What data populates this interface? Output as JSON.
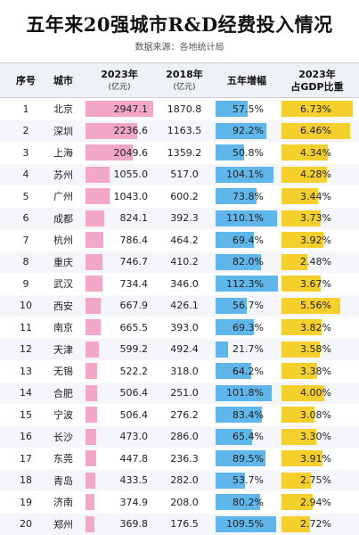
{
  "title": "五年来20强城市R&D经费投入情况",
  "subtitle": "数据来源：各地统计局",
  "headers": {
    "rank": "序号",
    "city": "城市",
    "y2023": "2023年",
    "y2023_unit": "(亿元)",
    "y2018": "2018年",
    "y2018_unit": "(亿元)",
    "growth": "五年增幅",
    "share_year": "2023年",
    "share": "占GDP比重"
  },
  "colors": {
    "pink": "#f2a7c6",
    "blue": "#5fb6ea",
    "gold": "#f5cf2c"
  },
  "chart_data": {
    "type": "table",
    "columns": [
      "序号",
      "城市",
      "2023年(亿元)",
      "2018年(亿元)",
      "五年增幅",
      "2023年占GDP比重"
    ],
    "rows": [
      {
        "rank": "1",
        "city": "北京",
        "rd2023": "2947.1",
        "rd2018": "1870.8",
        "growth": "57.5%",
        "share": "6.73%"
      },
      {
        "rank": "2",
        "city": "深圳",
        "rd2023": "2236.6",
        "rd2018": "1163.5",
        "growth": "92.2%",
        "share": "6.46%"
      },
      {
        "rank": "3",
        "city": "上海",
        "rd2023": "2049.6",
        "rd2018": "1359.2",
        "growth": "50.8%",
        "share": "4.34%"
      },
      {
        "rank": "4",
        "city": "苏州",
        "rd2023": "1055.0",
        "rd2018": "517.0",
        "growth": "104.1%",
        "share": "4.28%"
      },
      {
        "rank": "5",
        "city": "广州",
        "rd2023": "1043.0",
        "rd2018": "600.2",
        "growth": "73.8%",
        "share": "3.44%"
      },
      {
        "rank": "6",
        "city": "成都",
        "rd2023": "824.1",
        "rd2018": "392.3",
        "growth": "110.1%",
        "share": "3.73%"
      },
      {
        "rank": "7",
        "city": "杭州",
        "rd2023": "786.4",
        "rd2018": "464.2",
        "growth": "69.4%",
        "share": "3.92%"
      },
      {
        "rank": "8",
        "city": "重庆",
        "rd2023": "746.7",
        "rd2018": "410.2",
        "growth": "82.0%",
        "share": "2.48%"
      },
      {
        "rank": "9",
        "city": "武汉",
        "rd2023": "734.4",
        "rd2018": "346.0",
        "growth": "112.3%",
        "share": "3.67%"
      },
      {
        "rank": "10",
        "city": "西安",
        "rd2023": "667.9",
        "rd2018": "426.1",
        "growth": "56.7%",
        "share": "5.56%"
      },
      {
        "rank": "11",
        "city": "南京",
        "rd2023": "665.5",
        "rd2018": "393.0",
        "growth": "69.3%",
        "share": "3.82%"
      },
      {
        "rank": "12",
        "city": "天津",
        "rd2023": "599.2",
        "rd2018": "492.4",
        "growth": "21.7%",
        "share": "3.58%"
      },
      {
        "rank": "13",
        "city": "无锡",
        "rd2023": "522.2",
        "rd2018": "318.0",
        "growth": "64.2%",
        "share": "3.38%"
      },
      {
        "rank": "14",
        "city": "合肥",
        "rd2023": "506.4",
        "rd2018": "251.0",
        "growth": "101.8%",
        "share": "4.00%"
      },
      {
        "rank": "15",
        "city": "宁波",
        "rd2023": "506.4",
        "rd2018": "276.2",
        "growth": "83.4%",
        "share": "3.08%"
      },
      {
        "rank": "16",
        "city": "长沙",
        "rd2023": "473.0",
        "rd2018": "286.0",
        "growth": "65.4%",
        "share": "3.30%"
      },
      {
        "rank": "17",
        "city": "东莞",
        "rd2023": "447.8",
        "rd2018": "236.3",
        "growth": "89.5%",
        "share": "3.91%"
      },
      {
        "rank": "18",
        "city": "青岛",
        "rd2023": "433.5",
        "rd2018": "282.0",
        "growth": "53.7%",
        "share": "2.75%"
      },
      {
        "rank": "19",
        "city": "济南",
        "rd2023": "374.9",
        "rd2018": "208.0",
        "growth": "80.2%",
        "share": "2.94%"
      },
      {
        "rank": "20",
        "city": "郑州",
        "rd2023": "369.8",
        "rd2018": "176.5",
        "growth": "109.5%",
        "share": "2.72%"
      }
    ]
  }
}
